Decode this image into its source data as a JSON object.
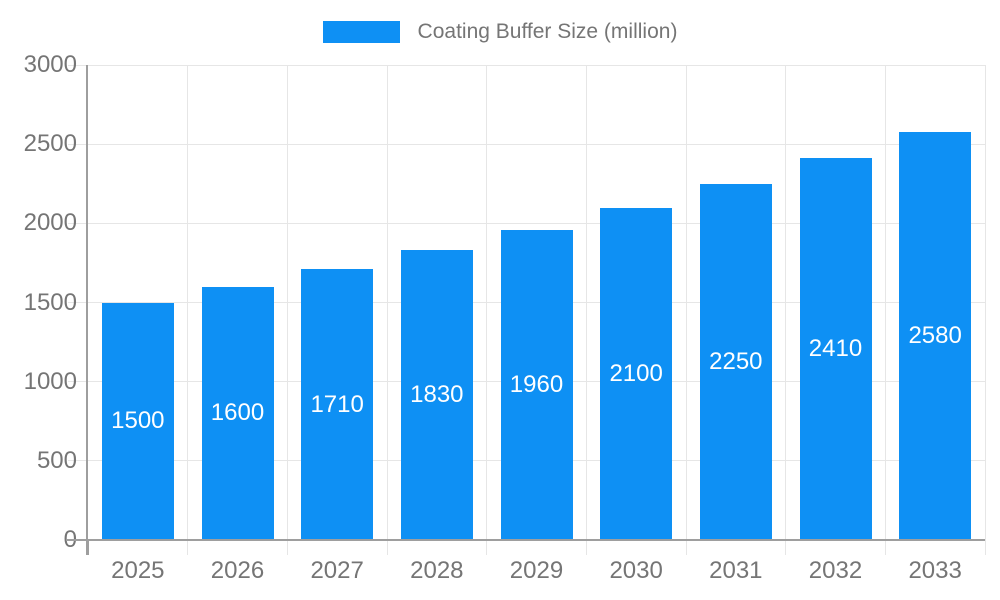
{
  "legend": {
    "label": "Coating Buffer Size (million)"
  },
  "chart_data": {
    "type": "bar",
    "title": "Coating Buffer Size (million)",
    "categories": [
      "2025",
      "2026",
      "2027",
      "2028",
      "2029",
      "2030",
      "2031",
      "2032",
      "2033"
    ],
    "values": [
      1500,
      1600,
      1710,
      1830,
      1960,
      2100,
      2250,
      2410,
      2580
    ],
    "bar_labels": [
      "1500",
      "1600",
      "1710",
      "1830",
      "1960",
      "2100",
      "2250",
      "2410",
      "2580"
    ],
    "xlabel": "",
    "ylabel": "",
    "ylim": [
      0,
      3000
    ],
    "yticks": [
      0,
      500,
      1000,
      1500,
      2000,
      2500,
      3000
    ],
    "grid": true,
    "legend_position": "top",
    "colors": {
      "bar": "#0e90f4",
      "bar_label": "#ffffff",
      "axis": "#9e9e9e",
      "grid": "#e6e6e6",
      "tick_label": "#757575",
      "legend_text": "#757575",
      "background": "#ffffff"
    }
  }
}
